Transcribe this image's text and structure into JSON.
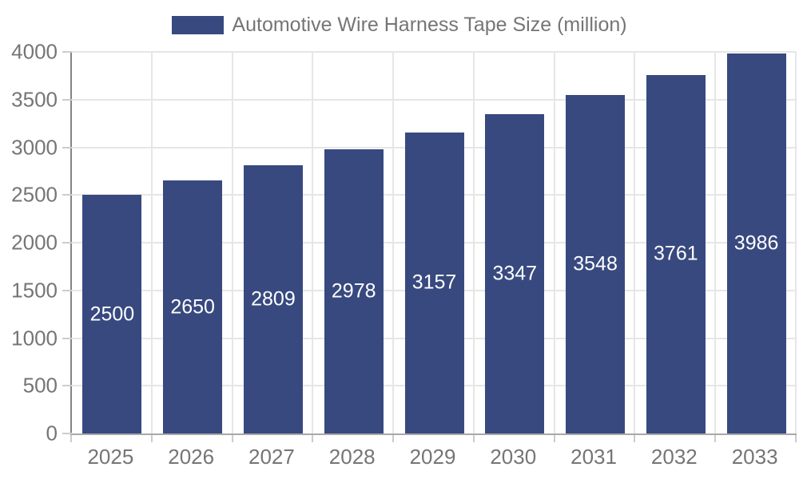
{
  "chart_data": {
    "type": "bar",
    "title": "Automotive Wire Harness Tape Size (million)",
    "categories": [
      "2025",
      "2026",
      "2027",
      "2028",
      "2029",
      "2030",
      "2031",
      "2032",
      "2033"
    ],
    "values": [
      2500,
      2650,
      2809,
      2978,
      3157,
      3347,
      3548,
      3761,
      3986
    ],
    "data_labels": [
      "2500",
      "2650",
      "2809",
      "2978",
      "3157",
      "3347",
      "3548",
      "3761",
      "3986"
    ],
    "xlabel": "",
    "ylabel": "",
    "ylim": [
      0,
      4000
    ],
    "ytick_step": 500,
    "ytick_labels": [
      "0",
      "500",
      "1000",
      "1500",
      "2000",
      "2500",
      "3000",
      "3500",
      "4000"
    ],
    "grid": true,
    "legend_position": "top",
    "bar_color": "#38497f",
    "data_label_color": "#ffffff",
    "axis_text_color": "#757575",
    "gridline_color": "#e6e6e6"
  },
  "legend": {
    "label": "Automotive Wire Harness Tape Size (million)"
  }
}
